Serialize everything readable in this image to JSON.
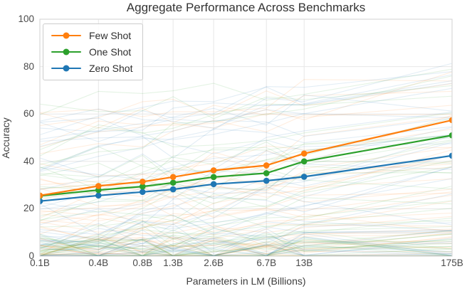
{
  "chart_data": {
    "type": "line",
    "title": "Aggregate Performance Across Benchmarks",
    "xlabel": "Parameters in LM (Billions)",
    "ylabel": "Accuracy",
    "x_scale": "log",
    "x_tick_labels": [
      "0.1B",
      "0.4B",
      "0.8B",
      "1.3B",
      "2.6B",
      "6.7B",
      "13B",
      "175B"
    ],
    "x_values_billions": [
      0.125,
      0.35,
      0.76,
      1.3,
      2.65,
      6.7,
      13,
      175
    ],
    "y_ticks": [
      0,
      20,
      40,
      60,
      80,
      100
    ],
    "ylim": [
      0,
      100
    ],
    "grid": true,
    "legend_position": "upper-left",
    "series": [
      {
        "name": "Few Shot",
        "color": "#ff7f0e",
        "values": [
          25.6,
          29.6,
          31.4,
          33.4,
          36.2,
          38.3,
          43.3,
          57.4
        ]
      },
      {
        "name": "One Shot",
        "color": "#2ca02c",
        "values": [
          25.4,
          27.9,
          29.4,
          31.0,
          33.4,
          35.0,
          40.0,
          51.0
        ]
      },
      {
        "name": "Zero Shot",
        "color": "#1f77b4",
        "values": [
          23.2,
          25.6,
          27.1,
          28.2,
          30.4,
          31.8,
          33.5,
          42.4
        ]
      }
    ],
    "background_lines": {
      "per_series_count": 42,
      "opacity": 0.13,
      "seed": 11
    }
  },
  "style": {
    "grid_color": "#e7e7e7",
    "spine_color": "#d9d9d9",
    "background": "#ffffff"
  }
}
